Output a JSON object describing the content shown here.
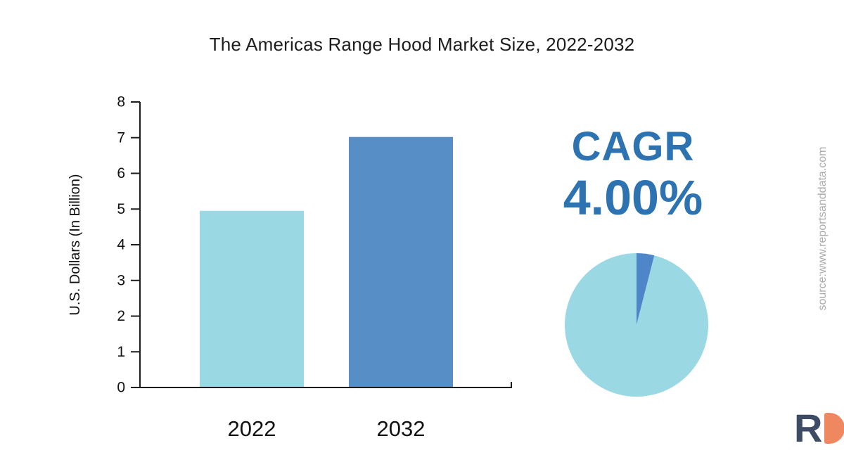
{
  "title": "The Americas Range Hood Market Size, 2022-2032",
  "chart_data": [
    {
      "type": "bar",
      "title": "The Americas Range Hood Market Size, 2022-2032",
      "categories": [
        "2022",
        "2032"
      ],
      "values": [
        4.95,
        7.02
      ],
      "xlabel": "",
      "ylabel": "U.S. Dollars (In Billion)",
      "ylim": [
        0,
        8
      ],
      "yticks": [
        0,
        1,
        2,
        3,
        4,
        5,
        6,
        7,
        8
      ],
      "bar_colors": [
        "#9ad8e3",
        "#588ec6"
      ],
      "grid": false,
      "legend": false
    },
    {
      "type": "pie",
      "labels": [
        "CAGR slice",
        "remainder"
      ],
      "values": [
        4,
        96
      ],
      "colors": [
        "#4e86c9",
        "#9ad8e3"
      ],
      "start": "top",
      "direction": "clockwise"
    }
  ],
  "cagr": {
    "label": "CAGR",
    "value": "4.00%",
    "color": "#2e73b1"
  },
  "source": {
    "text": "source:www.reportsanddata.com"
  },
  "logo": {
    "letter_r": "R",
    "navy": "#3e4b64",
    "orange": "#ef8760"
  },
  "palette": {
    "bar_2022": "#9ad8e3",
    "bar_2032": "#588ec6",
    "pie_light": "#9ad8e3",
    "pie_dark": "#4e86c9",
    "axis": "#1d1d1d",
    "source_gray": "#ababab"
  }
}
